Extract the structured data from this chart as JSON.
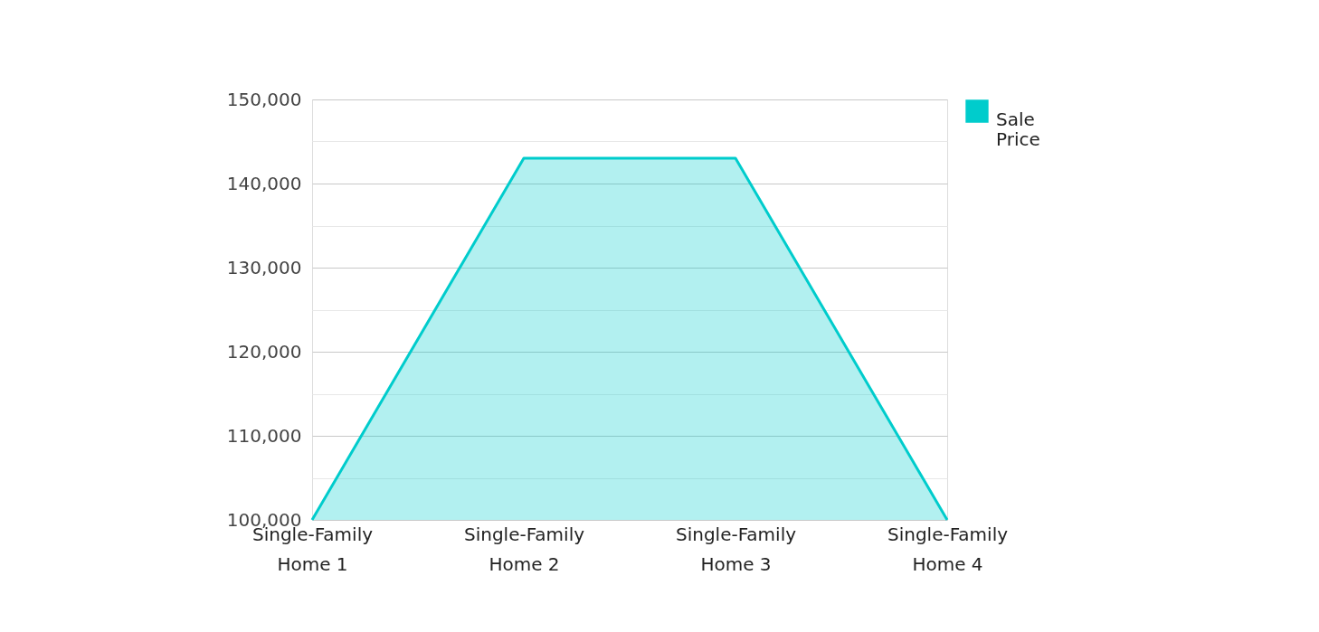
{
  "chart_data": {
    "type": "area",
    "categories": [
      "Single-Family Home 1",
      "Single-Family Home 2",
      "Single-Family Home 3",
      "Single-Family Home 4"
    ],
    "series": [
      {
        "name": "Sale Price",
        "color": "#00cccc",
        "values": [
          100000,
          143000,
          143000,
          100000
        ]
      }
    ],
    "ylim": [
      100000,
      150000
    ],
    "yticks": [
      {
        "value": 100000,
        "label": "100,000"
      },
      {
        "value": 105000,
        "label": null
      },
      {
        "value": 110000,
        "label": "110,000"
      },
      {
        "value": 115000,
        "label": null
      },
      {
        "value": 120000,
        "label": "120,000"
      },
      {
        "value": 125000,
        "label": null
      },
      {
        "value": 130000,
        "label": "130,000"
      },
      {
        "value": 135000,
        "label": null
      },
      {
        "value": 140000,
        "label": "140,000"
      },
      {
        "value": 145000,
        "label": null
      },
      {
        "value": 150000,
        "label": "150,000"
      }
    ],
    "grid": "y",
    "legend": "top right"
  }
}
